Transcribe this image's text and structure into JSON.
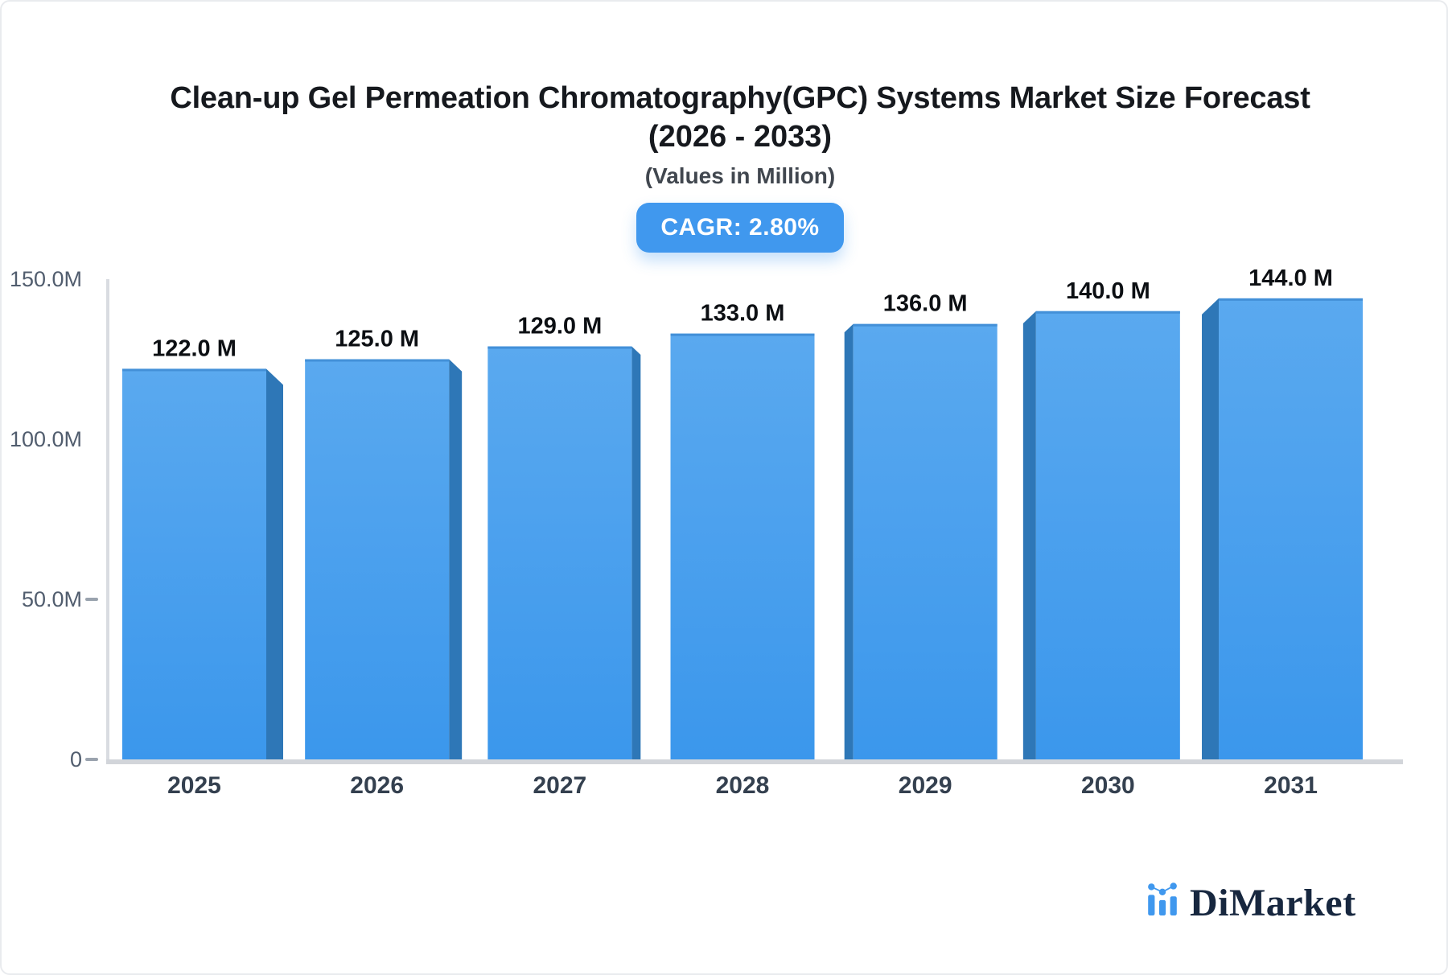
{
  "header": {
    "title_line1": "Clean-up Gel Permeation Chromatography(GPC) Systems Market Size Forecast",
    "title_line2": "(2026 - 2033)",
    "subtitle": "(Values in Million)",
    "cagr_badge": "CAGR: 2.80%"
  },
  "chart_data": {
    "type": "bar",
    "title": "Clean-up Gel Permeation Chromatography(GPC) Systems Market Size Forecast (2026 - 2033)",
    "subtitle": "(Values in Million)",
    "cagr": "2.80%",
    "unit": "Million",
    "categories": [
      "2025",
      "2026",
      "2027",
      "2028",
      "2029",
      "2030",
      "2031"
    ],
    "values": [
      122,
      125,
      129,
      133,
      136,
      140,
      144
    ],
    "value_labels": [
      "122.0 M",
      "125.0 M",
      "129.0 M",
      "133.0 M",
      "136.0 M",
      "140.0 M",
      "144.0 M"
    ],
    "xlabel": "",
    "ylabel": "",
    "ylim": [
      0,
      150
    ],
    "y_ticks": [
      {
        "label": "150.0M",
        "value": 150
      },
      {
        "label": "100.0M",
        "value": 100
      },
      {
        "label": "50.0M",
        "value": 50
      },
      {
        "label": "0",
        "value": 0
      }
    ],
    "grid": false,
    "legend": "none",
    "bar_face_top_color": "#5aa9ef",
    "bar_face_bottom_color": "#3b97ec",
    "bar_side_color": "#2e77b7",
    "bar_top_edge_color": "#4390d8"
  },
  "colors": {
    "badge_bg": "#4098ee",
    "axis_line": "#d9dce1",
    "baseline": "#d2d5da",
    "tick_dash": "#9aa3ae",
    "y_tick_label": "#515d6e",
    "x_tick_label": "#34404f",
    "value_label": "#0c0f13",
    "logo_blue": "#4098ee",
    "logo_navy": "#17273f"
  },
  "logo": {
    "text": "DiMarket",
    "icon": "mini-bar-chart-icon"
  }
}
